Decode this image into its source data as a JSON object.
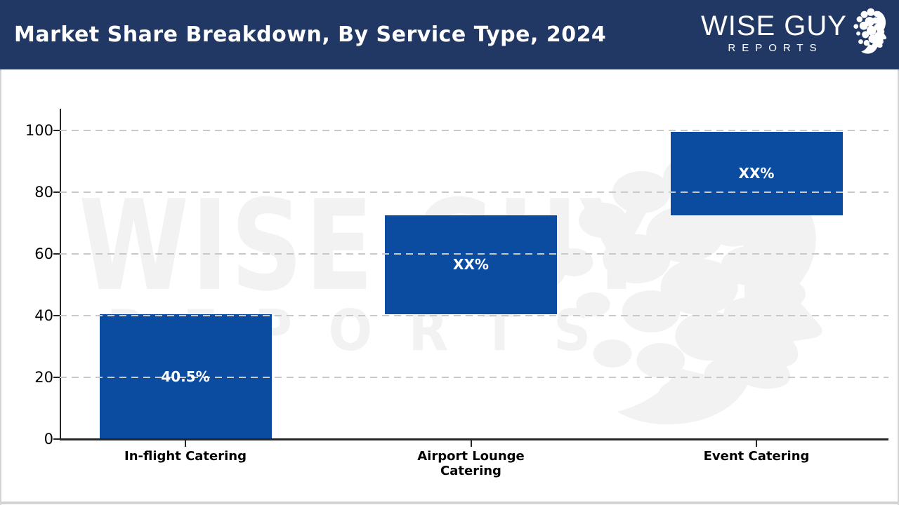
{
  "header": {
    "title": "Market Share Breakdown, By Service Type, 2024",
    "logo": {
      "line1": "WISE GUY",
      "line2": "REPORTS"
    }
  },
  "watermark": {
    "line1": "WISE GUY",
    "line2": "REPORTS"
  },
  "chart_data": {
    "type": "bar",
    "subtype": "waterfall",
    "title": "Market Share Breakdown, By Service Type, 2024",
    "categories": [
      "In-flight Catering",
      "Airport Lounge\nCatering",
      "Event Catering"
    ],
    "series": [
      {
        "name": "Market Share",
        "segments": [
          {
            "category": "In-flight Catering",
            "start": 0,
            "end": 40.5,
            "label": "40.5%"
          },
          {
            "category": "Airport Lounge Catering",
            "start": 40.5,
            "end": 72.5,
            "label": "XX%"
          },
          {
            "category": "Event Catering",
            "start": 72.5,
            "end": 99.5,
            "label": "XX%"
          }
        ]
      }
    ],
    "xlabel": "",
    "ylabel": "",
    "yticks": [
      0,
      20,
      40,
      60,
      80,
      100
    ],
    "ylim": [
      0,
      107
    ],
    "grid": "horizontal-dashed",
    "legend": "none",
    "bar_color": "#0b4ca1",
    "bar_label_color": "#ffffff"
  },
  "colors": {
    "header_bg": "#213865",
    "bar": "#0b4ca1",
    "grid": "#c9c9c9",
    "axis": "#262626",
    "watermark": "#f2f2f2",
    "edge": "#d3d3d3"
  }
}
